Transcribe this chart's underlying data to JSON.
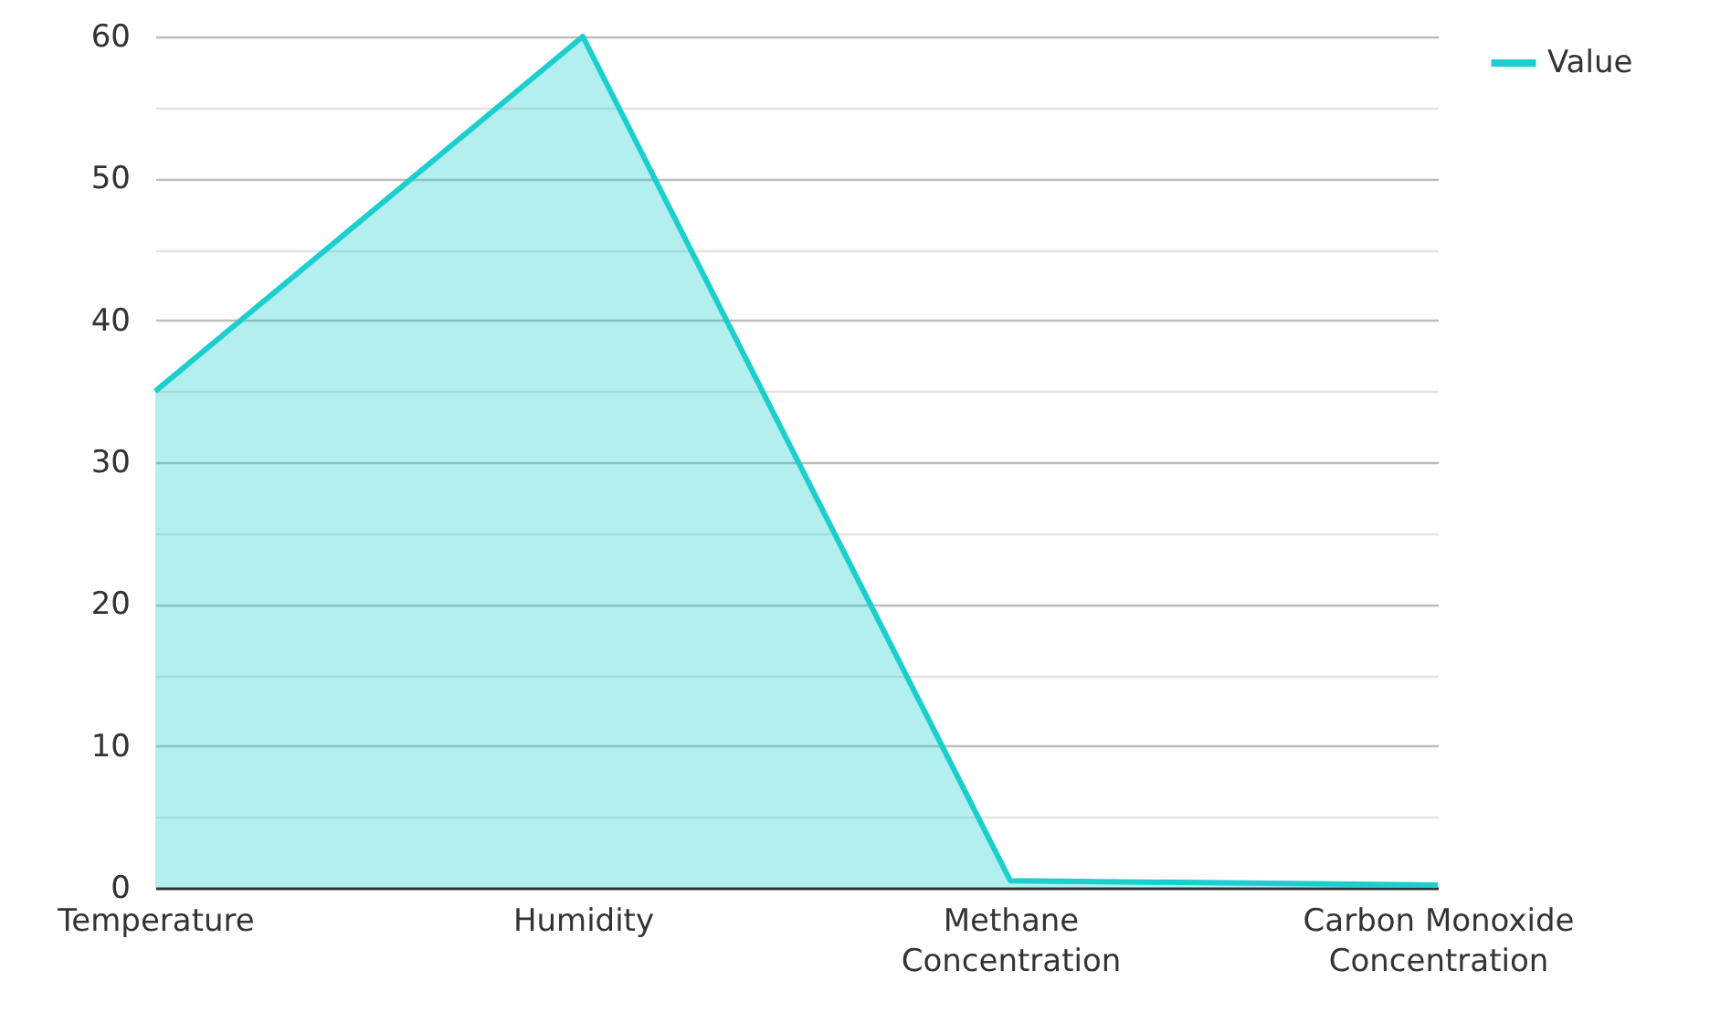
{
  "chart_data": {
    "type": "area",
    "categories": [
      "Temperature",
      "Humidity",
      "Methane Concentration",
      "Carbon Monoxide Concentration"
    ],
    "series": [
      {
        "name": "Value",
        "color": "#1ccfcf",
        "values": [
          35,
          60,
          0.5,
          0.2
        ]
      }
    ],
    "ylim": [
      0,
      60
    ],
    "yticks": [
      0,
      {
        "value": 5,
        "label": null
      },
      10,
      {
        "value": 15,
        "label": null
      },
      20,
      {
        "value": 25,
        "label": null
      },
      30,
      {
        "value": 35,
        "label": null
      },
      40,
      {
        "value": 45,
        "label": null
      },
      50,
      {
        "value": 55,
        "label": null
      },
      60
    ],
    "grid": true,
    "legend": "top right"
  }
}
